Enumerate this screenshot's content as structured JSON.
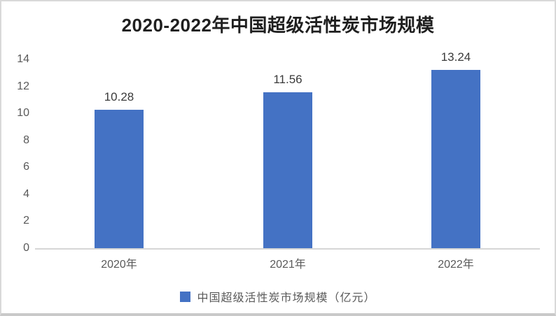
{
  "chart_data": {
    "type": "bar",
    "title": "2020-2022年中国超级活性炭市场规模",
    "categories": [
      "2020年",
      "2021年",
      "2022年"
    ],
    "values": [
      10.28,
      11.56,
      13.24
    ],
    "value_labels": [
      "10.28",
      "11.56",
      "13.24"
    ],
    "xlabel": "",
    "ylabel": "",
    "ylim": [
      0,
      14
    ],
    "y_ticks": [
      0,
      2,
      4,
      6,
      8,
      10,
      12,
      14
    ],
    "grid": false,
    "bar_color": "#4472c4",
    "legend_position": "bottom",
    "legend": [
      {
        "label": "中国超级活性炭市场规模（亿元）",
        "color": "#4472c4"
      }
    ],
    "colors": {
      "title_text": "#1f1f1f",
      "tick_text": "#595959",
      "value_label_text": "#3a3a3a",
      "axis_line": "#d6d6d6",
      "card_border": "#d9d9d9"
    }
  }
}
